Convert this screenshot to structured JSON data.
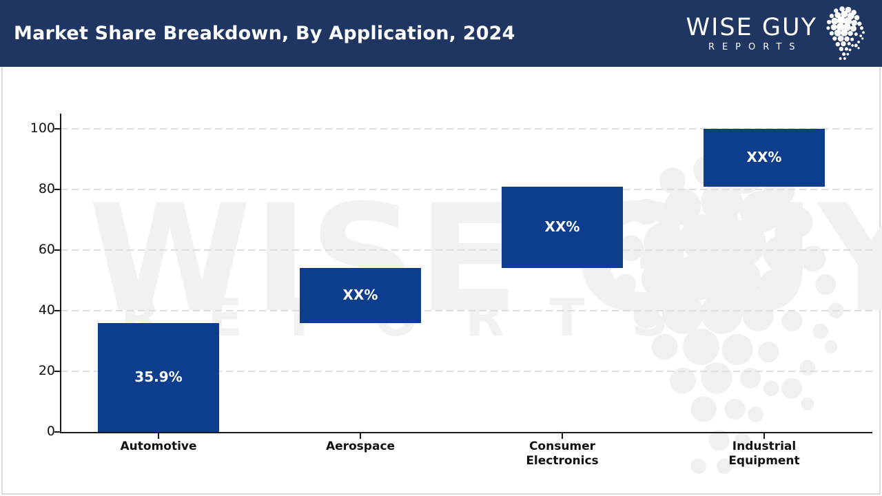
{
  "header": {
    "title": "Market Share Breakdown, By Application, 2024",
    "bg_color": "#1f3562",
    "logo": {
      "line1": "WISE GUY",
      "line2": "REPORTS"
    }
  },
  "watermark": {
    "line1": "WISE GUY",
    "line2": "REPORTS"
  },
  "chart_data": {
    "type": "bar",
    "subtype": "waterfall-floating-bars",
    "title": "Market Share Breakdown, By Application, 2024",
    "categories": [
      "Automotive",
      "Aerospace",
      "Consumer\nElectronics",
      "Industrial\nEquipment"
    ],
    "segments": [
      {
        "category": "Automotive",
        "start": 0,
        "end": 35.9,
        "label": "35.9%"
      },
      {
        "category": "Aerospace",
        "start": 35.9,
        "end": 54.1,
        "label": "XX%"
      },
      {
        "category": "Consumer\nElectronics",
        "start": 54.1,
        "end": 81.0,
        "label": "XX%"
      },
      {
        "category": "Industrial\nEquipment",
        "start": 81.0,
        "end": 100.0,
        "label": "XX%"
      }
    ],
    "xlabel": "",
    "ylabel": "",
    "ylim": [
      0,
      100
    ],
    "yticks": [
      0,
      20,
      40,
      60,
      80,
      100
    ],
    "grid": "horizontal-dashed",
    "legend": "none",
    "bar_color": "#0d3d8d",
    "bar_label_color": "#ffffff",
    "axis_color": "#1a1a1a",
    "gridline_color": "#dedede"
  }
}
